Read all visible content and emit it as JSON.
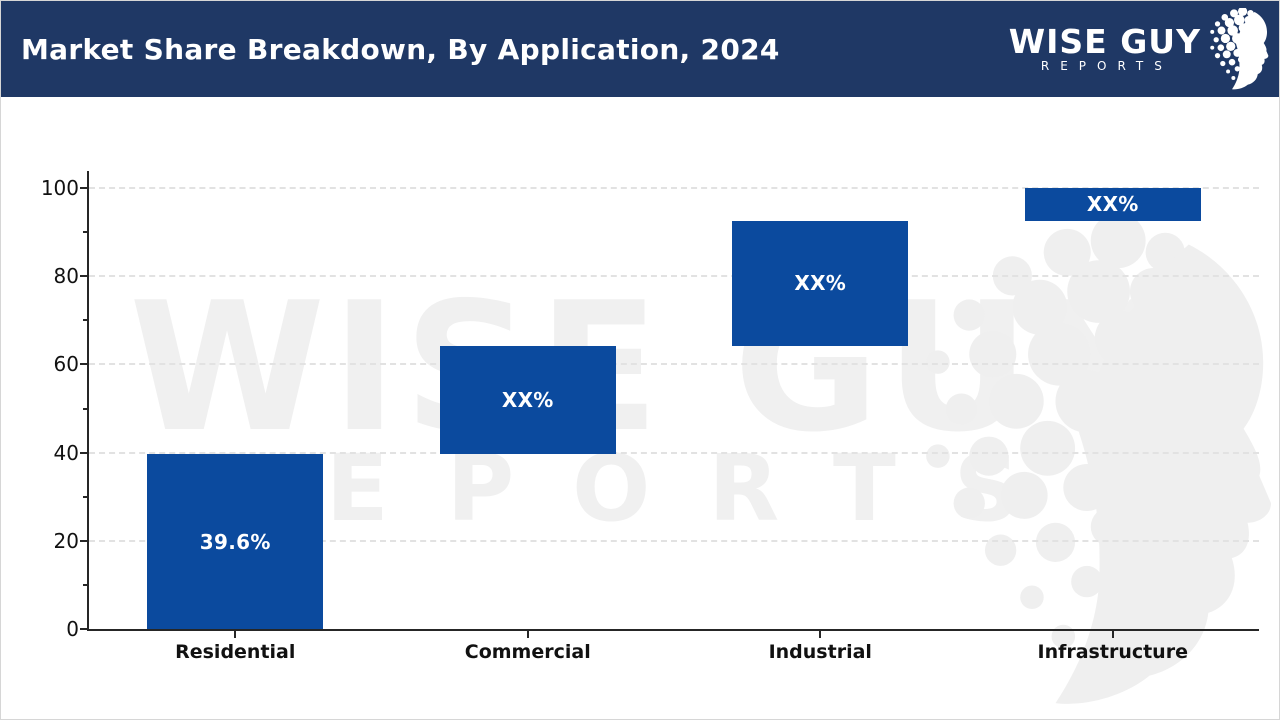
{
  "header": {
    "title": "Market Share Breakdown, By Application, 2024",
    "logo": {
      "line1": "WISE GUY",
      "line2": "REPORTS"
    }
  },
  "watermark": {
    "line1": "WISE GUY",
    "line2": "REPORTS"
  },
  "icons": {
    "logo_head": "dotted-head-profile-icon",
    "watermark_head": "dotted-head-profile-watermark"
  },
  "colors": {
    "header_bg": "#1F3865",
    "bar": "#0B4A9E",
    "bar_label": "#FFFFFF",
    "grid": "#E2E2E2",
    "axis": "#262626",
    "tick_text": "#111111",
    "title_text": "#FFFFFF",
    "watermark": "#F0F0F0",
    "figure_border": "#D6D6D6"
  },
  "chart_data": {
    "type": "bar",
    "subtype": "waterfall",
    "title": "Market Share Breakdown, By Application, 2024",
    "categories": [
      "Residential",
      "Commercial",
      "Industrial",
      "Infrastructure"
    ],
    "segments": [
      {
        "category": "Residential",
        "start": 0,
        "end": 39.6,
        "value": 39.6,
        "label": "39.6%"
      },
      {
        "category": "Commercial",
        "start": 39.6,
        "end": 64.2,
        "value": 24.6,
        "label": "XX%"
      },
      {
        "category": "Industrial",
        "start": 64.2,
        "end": 92.6,
        "value": 28.4,
        "label": "XX%"
      },
      {
        "category": "Infrastructure",
        "start": 92.6,
        "end": 100,
        "value": 7.4,
        "label": "XX%"
      }
    ],
    "xlabel": "",
    "ylabel": "",
    "ylim": [
      0,
      100
    ],
    "yticks": [
      0,
      20,
      40,
      60,
      80,
      100
    ],
    "minor_yticks": [
      10,
      30,
      50,
      70,
      90
    ],
    "grid": "horizontal-dashed",
    "legend": "none",
    "bar_color": "#0B4A9E",
    "bar_label_color": "#FFFFFF"
  }
}
